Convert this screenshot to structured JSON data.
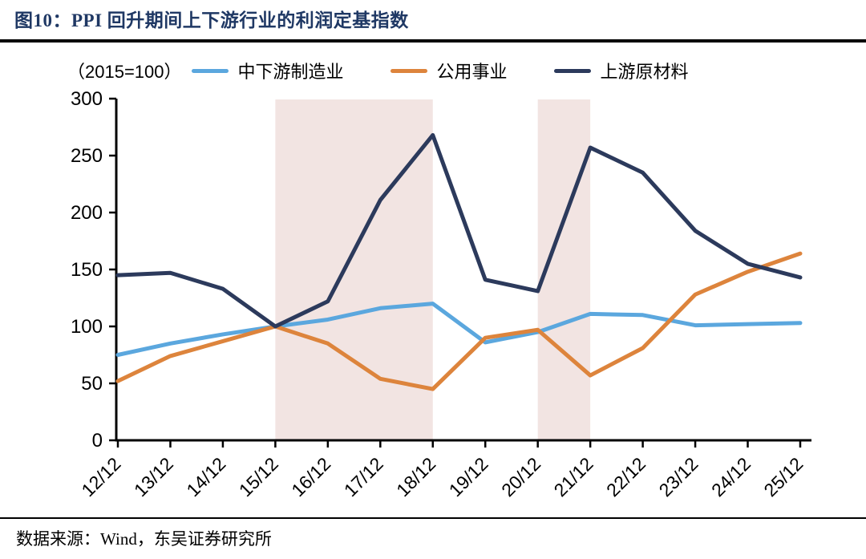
{
  "header": {
    "title": "图10：PPI 回升期间上下游行业的利润定基指数"
  },
  "footer": {
    "source": "数据来源：Wind，东吴证券研究所"
  },
  "chart_data": {
    "type": "line",
    "title": "PPI 回升期间上下游行业的利润定基指数",
    "unit_note": "（2015=100）",
    "categories": [
      "12/12",
      "13/12",
      "14/12",
      "15/12",
      "16/12",
      "17/12",
      "18/12",
      "19/12",
      "20/12",
      "21/12",
      "22/12",
      "23/12",
      "24/12",
      "25/12"
    ],
    "series": [
      {
        "name": "中下游制造业",
        "color": "#5BA7DE",
        "values": [
          75,
          85,
          93,
          100,
          106,
          116,
          120,
          86,
          95,
          111,
          110,
          101,
          102,
          103
        ]
      },
      {
        "name": "公用事业",
        "color": "#DD843C",
        "values": [
          52,
          74,
          87,
          100,
          85,
          54,
          45,
          90,
          97,
          57,
          81,
          128,
          148,
          164
        ]
      },
      {
        "name": "上游原材料",
        "color": "#2C3A5C",
        "values": [
          145,
          147,
          133,
          100,
          122,
          211,
          268,
          141,
          131,
          257,
          235,
          184,
          155,
          143
        ]
      }
    ],
    "highlight_bands": [
      {
        "from": "15/12",
        "to": "18/12"
      },
      {
        "from": "20/12",
        "to": "21/12"
      }
    ],
    "band_color": "#F2E4E2",
    "xlabel": "",
    "ylabel": "",
    "ylim": [
      0,
      300
    ],
    "y_tick_step": 50,
    "grid": false,
    "legend_position": "top",
    "x_tick_rotation": -45
  },
  "colors": {
    "title": "#1F3864",
    "axis": "#000000",
    "rule": "#000000"
  }
}
